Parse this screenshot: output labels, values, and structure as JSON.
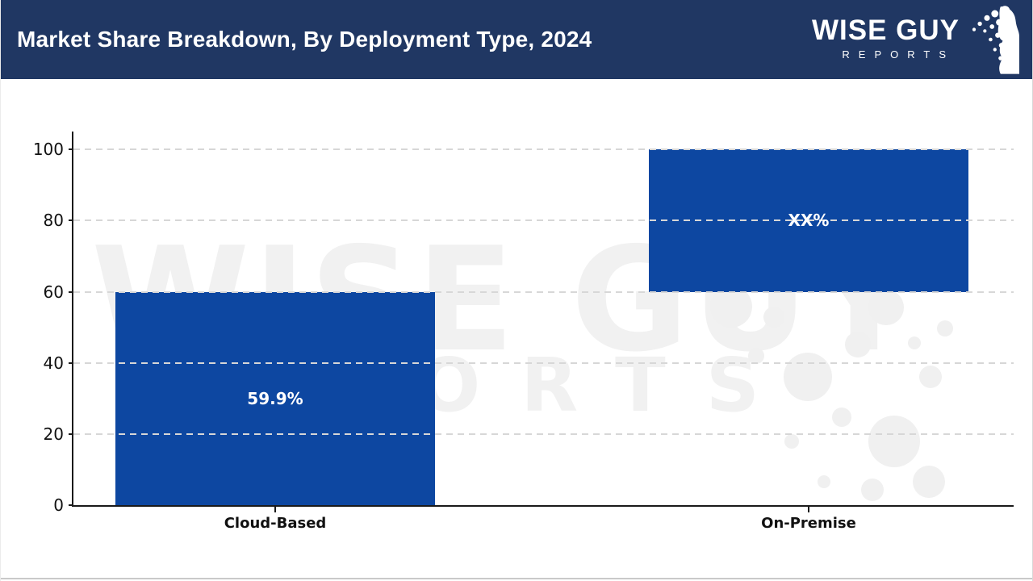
{
  "header": {
    "title": "Market Share Breakdown, By Deployment Type, 2024",
    "logo": {
      "wordmark": "WISE GUY",
      "subtext": "REPORTS"
    }
  },
  "watermark": {
    "line1": "WISE GUY",
    "line2": "REPORTS"
  },
  "chart_data": {
    "type": "bar",
    "title": "Market Share Breakdown, By Deployment Type, 2024",
    "categories": [
      "Cloud-Based",
      "On-Premise"
    ],
    "series": [
      {
        "name": "Market Share (%)",
        "points": [
          {
            "category": "Cloud-Based",
            "start": 0,
            "end": 59.9,
            "label": "59.9%"
          },
          {
            "category": "On-Premise",
            "start": 60,
            "end": 100,
            "label": "XX%"
          }
        ]
      }
    ],
    "yticks": [
      0,
      20,
      40,
      60,
      80,
      100
    ],
    "ylim": [
      0,
      105
    ],
    "xlabel": "",
    "ylabel": "",
    "grid": "horizontal-dashed",
    "legend": "none",
    "bar_color": "#0d47a1"
  },
  "colors": {
    "header_bg": "#203763",
    "bar": "#0d47a1",
    "gridline": "#d7d7d7",
    "axis": "#1a1a1a",
    "watermark": "#f1f1f1"
  }
}
